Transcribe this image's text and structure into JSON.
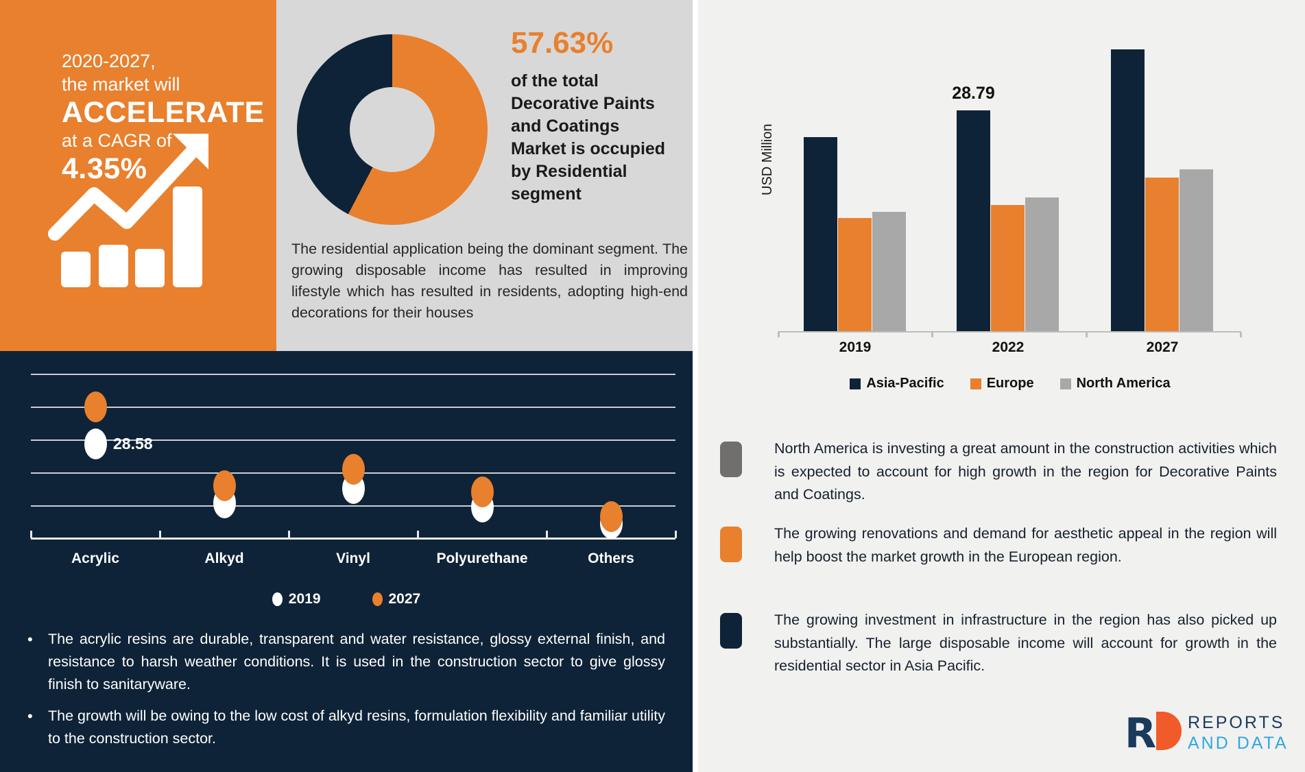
{
  "colors": {
    "accent_orange": "#E8802E",
    "navy": "#0E2337",
    "block_gray": "#D8D8D8",
    "panel_bg": "#F1F1F0",
    "bar_gray": "#A8A8A8",
    "bullet_gray": "#716E6E",
    "logo_navy": "#1B3A5C",
    "logo_orange": "#F15A29",
    "logo_blue": "#2FA8E0"
  },
  "accelerate_card": {
    "period": "2020-2027,",
    "line2": "the market will",
    "emphasis": "ACCELERATE",
    "line4": "at a CAGR of",
    "cagr": "4.35%"
  },
  "donut_section": {
    "percent": "57.63%",
    "headline": "of the total\nDecorative Paints\nand Coatings\nMarket is occupied\nby Residential\nsegment",
    "body": "The residential application being the dominant segment. The growing disposable income has resulted in improving lifestyle which has resulted in residents, adopting high-end decorations for their houses"
  },
  "chart_data": [
    {
      "id": "regional-bar-chart",
      "type": "bar",
      "title": "",
      "xlabel": "",
      "ylabel": "USD Million",
      "categories": [
        "2019",
        "2022",
        "2027"
      ],
      "series": [
        {
          "name": "Asia-Pacific",
          "color": "#0E2337",
          "values": [
            25.3,
            28.79,
            36.7
          ]
        },
        {
          "name": "Europe",
          "color": "#E8802E",
          "values": [
            14.7,
            16.4,
            20.0
          ]
        },
        {
          "name": "North America",
          "color": "#A8A8A8",
          "values": [
            15.5,
            17.4,
            21.1
          ]
        }
      ],
      "data_label": {
        "series": "Asia-Pacific",
        "category": "2022",
        "text": "28.79"
      },
      "ylim": [
        0,
        38
      ],
      "grid": false,
      "legend_position": "bottom"
    },
    {
      "id": "resin-dot-plot",
      "type": "scatter",
      "title": "",
      "xlabel": "",
      "ylabel": "",
      "categories": [
        "Acrylic",
        "Alkyd",
        "Vinyl",
        "Polyurethane",
        "Others"
      ],
      "series": [
        {
          "name": "2019",
          "color": "#FFFFFF",
          "values": [
            28.58,
            10.8,
            15.2,
            9.4,
            4.4
          ]
        },
        {
          "name": "2027",
          "color": "#E8802E",
          "values": [
            40,
            16,
            21,
            14,
            6.5
          ]
        }
      ],
      "data_label": {
        "series": "2019",
        "category": "Acrylic",
        "text": "28.58"
      },
      "ylim": [
        0,
        50
      ],
      "gridline_step": 10,
      "grid": true,
      "legend_position": "bottom"
    },
    {
      "id": "residential-donut",
      "type": "pie",
      "donut": true,
      "slices": [
        {
          "label": "Residential",
          "value": 57.63,
          "color": "#E8802E"
        },
        {
          "label": "Other",
          "value": 42.37,
          "color": "#0E2337"
        }
      ]
    }
  ],
  "region_bullets": [
    {
      "marker_color": "#716E6E",
      "text": "North America is investing a great amount in the construction activities which is expected to account for high growth in the region for Decorative Paints and Coatings."
    },
    {
      "marker_color": "#E8802E",
      "text": "The growing renovations and demand for aesthetic appeal in the region will help boost the market growth in the European region."
    },
    {
      "marker_color": "#0E2337",
      "text": "The growing investment in infrastructure in the region has also picked up substantially. The large disposable income will account for growth in the residential sector in Asia Pacific."
    }
  ],
  "resin_bullets": [
    "The acrylic resins are durable, transparent and water resistance, glossy external finish, and resistance to harsh weather conditions. It is used in the construction sector to give glossy finish to sanitaryware.",
    "The growth will be owing to the low cost of alkyd resins, formulation flexibility and familiar utility to the construction sector."
  ],
  "logo": {
    "reports": "REPORTS",
    "and_data": "AND DATA"
  }
}
